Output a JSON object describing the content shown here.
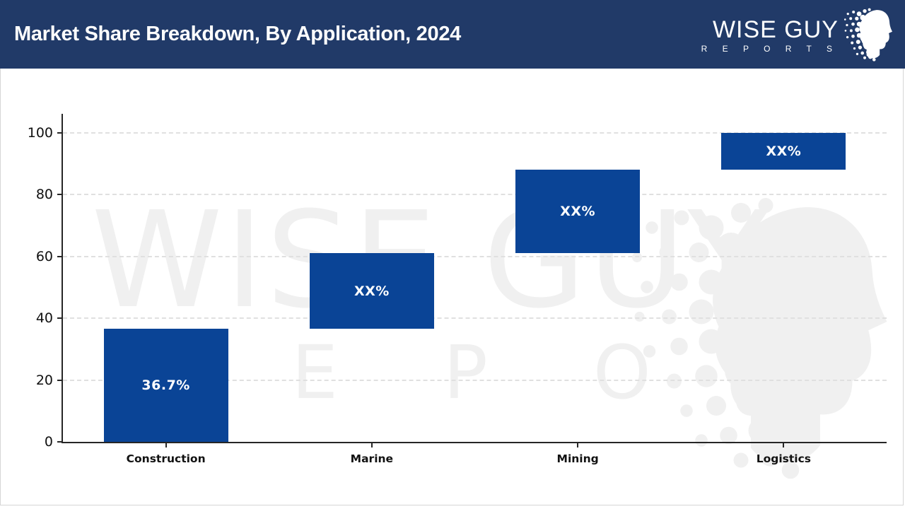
{
  "header": {
    "title": "Market Share Breakdown, By Application, 2024",
    "logo": {
      "line1": "WISE GUY",
      "line2": "R E P O R T S"
    }
  },
  "watermark": {
    "line1": "WISE GUY",
    "line2": "R E P O R T S"
  },
  "chart_data": {
    "type": "bar",
    "subtype": "floating-waterfall",
    "title": "Market Share Breakdown, By Application, 2024",
    "categories": [
      "Construction",
      "Marine",
      "Mining",
      "Logistics"
    ],
    "segments": [
      {
        "category": "Construction",
        "start": 0,
        "end": 36.7,
        "label": "36.7%"
      },
      {
        "category": "Marine",
        "start": 36.7,
        "end": 61,
        "label": "XX%"
      },
      {
        "category": "Mining",
        "start": 61,
        "end": 88,
        "label": "XX%"
      },
      {
        "category": "Logistics",
        "start": 88,
        "end": 100,
        "label": "XX%"
      }
    ],
    "ylim": [
      0,
      100
    ],
    "yticks": [
      0,
      20,
      40,
      60,
      80,
      100
    ],
    "xlabel": "",
    "ylabel": "",
    "grid": "horizontal-dashed",
    "legend": "none",
    "colors": {
      "bar": "#0a4496",
      "bar_label": "#ffffff",
      "axis": "#262626",
      "gridline": "#e0e0e0",
      "header_bg": "#213a68",
      "header_text": "#ffffff",
      "watermark": "#f0f0f0",
      "border": "#d6d6d6"
    }
  }
}
